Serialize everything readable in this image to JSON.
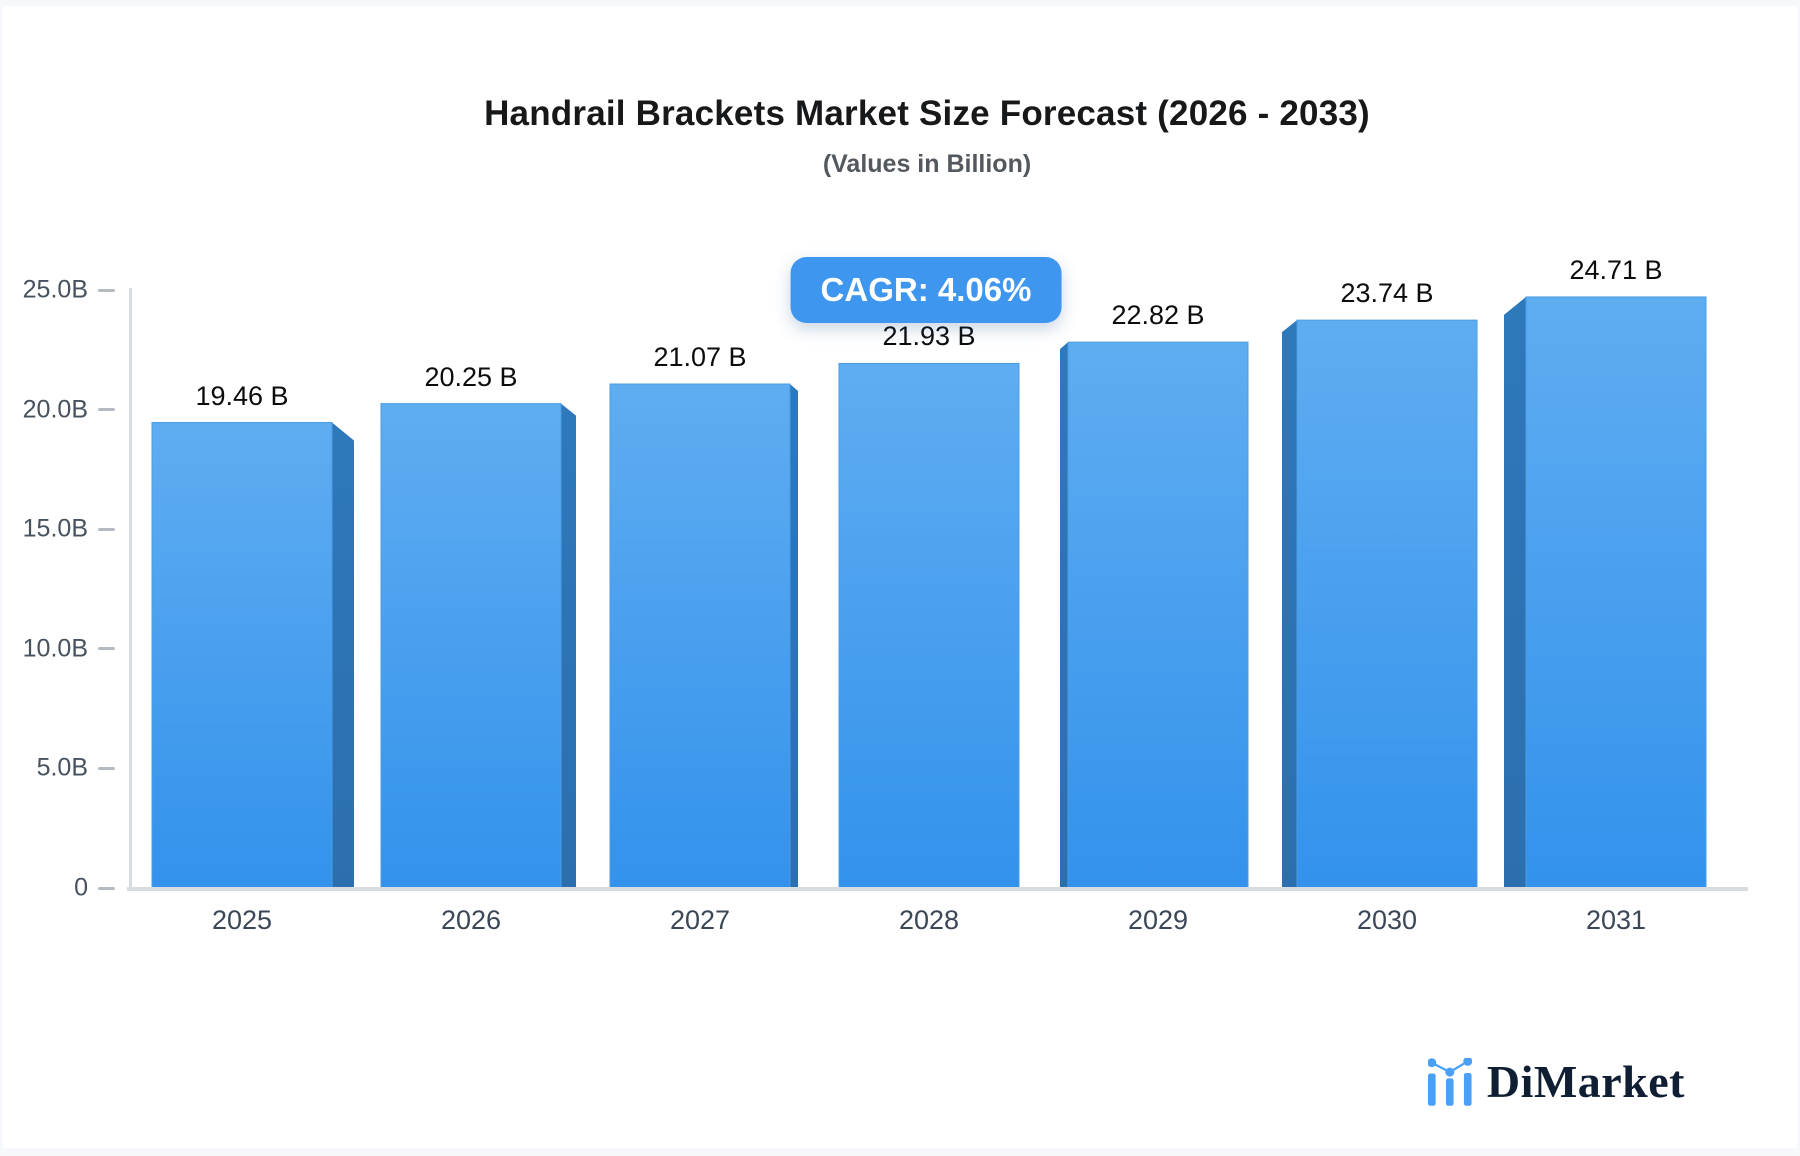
{
  "page": {
    "background": "#f7f8fb",
    "card_background": "#ffffff"
  },
  "header": {
    "title": "Handrail Brackets Market Size Forecast (2026 - 2033)",
    "subtitle": "(Values in Billion)"
  },
  "badge": {
    "label": "CAGR: 4.06%",
    "background": "#3e96ee",
    "text_color": "#ffffff"
  },
  "chart_data": {
    "type": "bar",
    "title": "Handrail Brackets Market Size Forecast (2026 - 2033)",
    "subtitle": "(Values in Billion)",
    "categories": [
      "2025",
      "2026",
      "2027",
      "2028",
      "2029",
      "2030",
      "2031"
    ],
    "values": [
      19.46,
      20.25,
      21.07,
      21.93,
      22.82,
      23.74,
      24.71
    ],
    "value_labels": [
      "19.46 B",
      "20.25 B",
      "21.07 B",
      "21.93 B",
      "22.82 B",
      "23.74 B",
      "24.71 B"
    ],
    "cagr_label": "CAGR: 4.06%",
    "xlabel": "",
    "ylabel": "",
    "ylim": [
      0,
      25
    ],
    "y_ticks": [
      {
        "value": 0,
        "label": "0"
      },
      {
        "value": 5,
        "label": "5.0B"
      },
      {
        "value": 10,
        "label": "10.0B"
      },
      {
        "value": 15,
        "label": "15.0B"
      },
      {
        "value": 20,
        "label": "20.0B"
      },
      {
        "value": 25,
        "label": "25.0B"
      }
    ],
    "grid": false,
    "legend": false,
    "style": "3d-perspective-bars",
    "colors": {
      "bar_face_top": "#5fadf1",
      "bar_face_bottom": "#3392ec",
      "bar_face_stroke": "#4b9ce2",
      "bar_side": "#2d73b6",
      "axis_line": "#d9dce1",
      "tick_dash": "#b4bac2",
      "y_label_text": "#47525f",
      "x_label_text": "#3b4757",
      "value_label_text": "#0b0c0d"
    }
  },
  "logo": {
    "name": "DiMarket",
    "icon": "bar-chart-trend-icon",
    "icon_color": "#4aa0f6",
    "text_color": "#0f1e33"
  }
}
